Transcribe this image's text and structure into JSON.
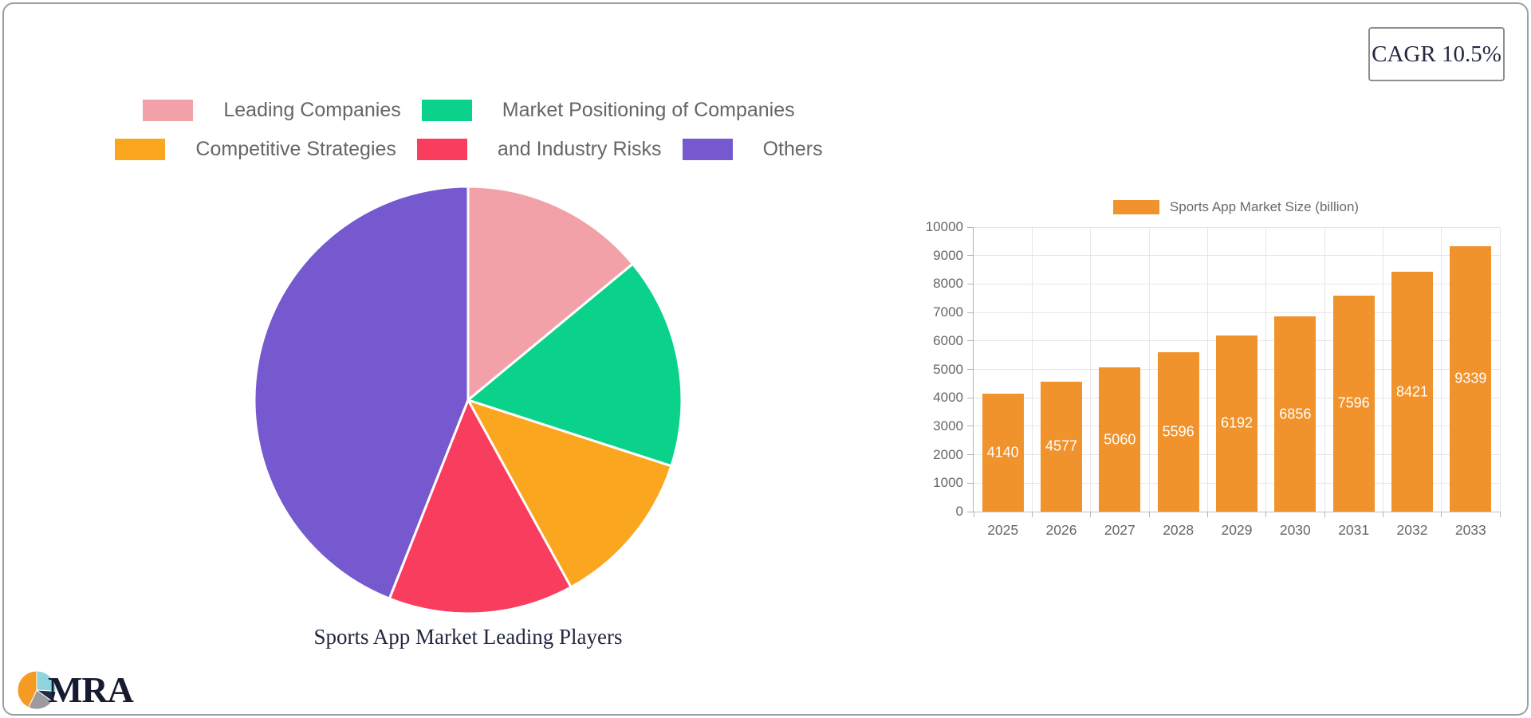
{
  "card": {
    "cagr_label": "CAGR 10.5%"
  },
  "logo": {
    "text": "MRA",
    "icon": "pie-chart-logo-icon",
    "icon_colors": [
      "#8fd3dc",
      "#1c2b4a",
      "#9c9ca0",
      "#f59a23"
    ],
    "icon_slices_pct": [
      26,
      9,
      22,
      43
    ]
  },
  "chart_data": [
    {
      "type": "pie",
      "title": "Sports App Market Leading Players",
      "labels": [
        "Leading Companies",
        "Market Positioning of Companies",
        "Competitive Strategies",
        "and Industry Risks",
        "Others"
      ],
      "values_pct": [
        14,
        16,
        12,
        14,
        44
      ],
      "colors": [
        "#f3a1a9",
        "#0bd28b",
        "#faa61e",
        "#f93d5e",
        "#7659cf"
      ],
      "legend_position": "top",
      "legend_rows": [
        [
          0,
          1
        ],
        [
          2,
          3,
          4
        ]
      ],
      "start_angle_deg": 0,
      "slice_border_color": "#ffffff"
    },
    {
      "type": "bar",
      "legend": [
        "Sports App Market Size (billion)"
      ],
      "categories": [
        "2025",
        "2026",
        "2027",
        "2028",
        "2029",
        "2030",
        "2031",
        "2032",
        "2033"
      ],
      "values": [
        4140,
        4577,
        5060,
        5596,
        6192,
        6856,
        7596,
        8421,
        9339
      ],
      "ylim": [
        0,
        10000
      ],
      "ytick_step": 1000,
      "bar_color": "#f0932d",
      "value_label_color": "#ffffff",
      "grid": true,
      "legend_position": "top"
    }
  ]
}
